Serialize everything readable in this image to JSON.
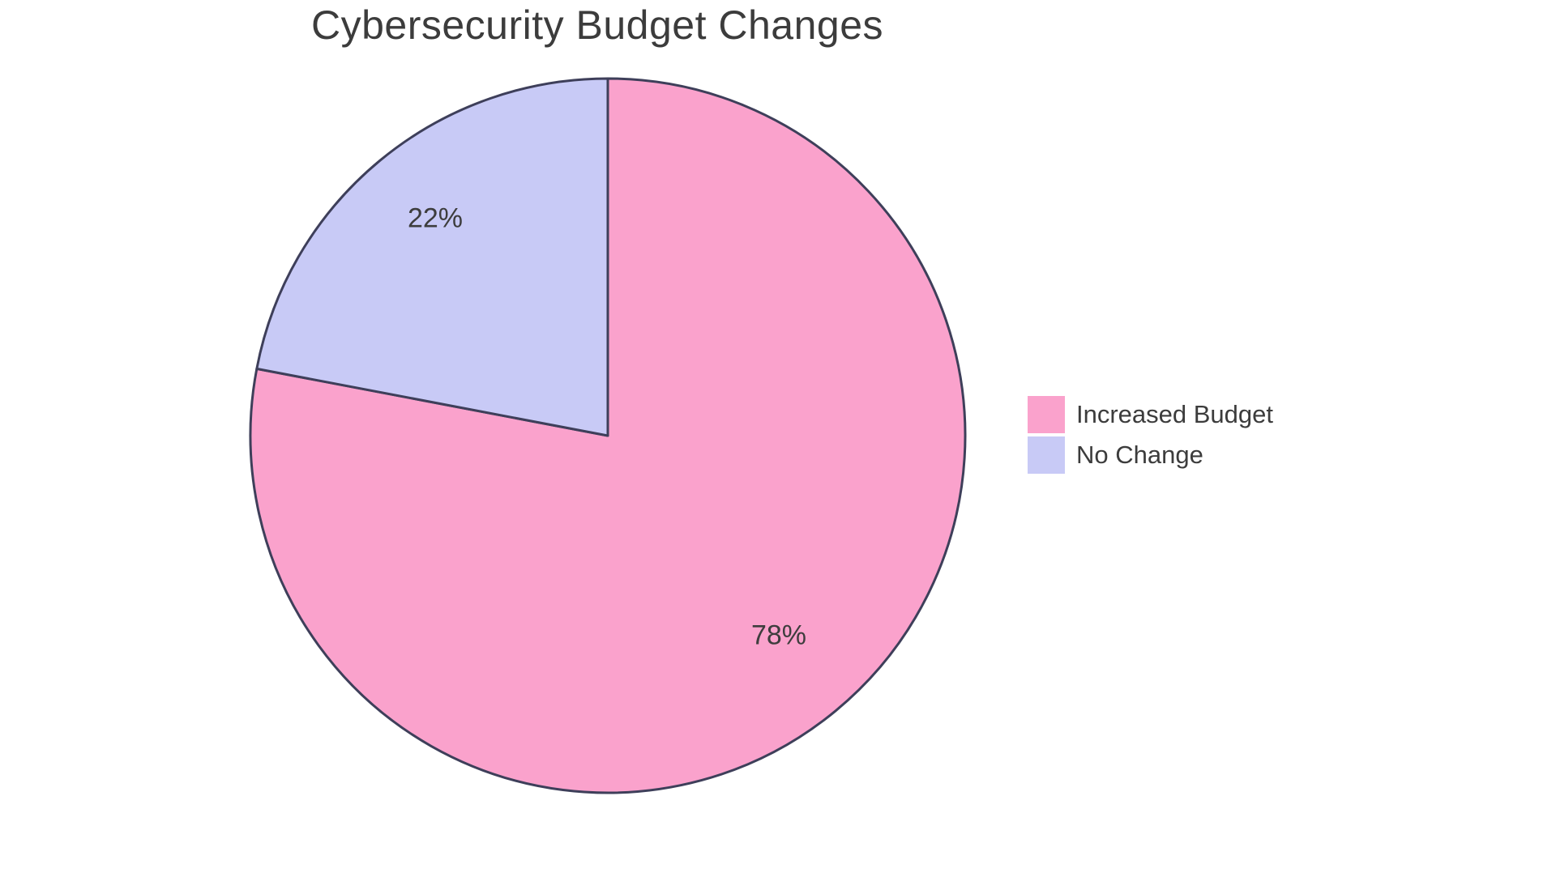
{
  "chart_data": {
    "type": "pie",
    "title": "Cybersecurity Budget Changes",
    "categories": [
      "Increased Budget",
      "No Change"
    ],
    "values": [
      78,
      22
    ],
    "slice_labels": [
      "78%",
      "22%"
    ],
    "colors": [
      "#FAA2CC",
      "#C8CAF6"
    ],
    "stroke_color": "#3E3F5A",
    "text_color": "#3C3C3C",
    "start_angle": "12 o'clock, clockwise",
    "legend_position": "right",
    "legend": [
      {
        "label": "Increased Budget",
        "color": "#FAA2CC"
      },
      {
        "label": "No Change",
        "color": "#C8CAF6"
      }
    ]
  }
}
